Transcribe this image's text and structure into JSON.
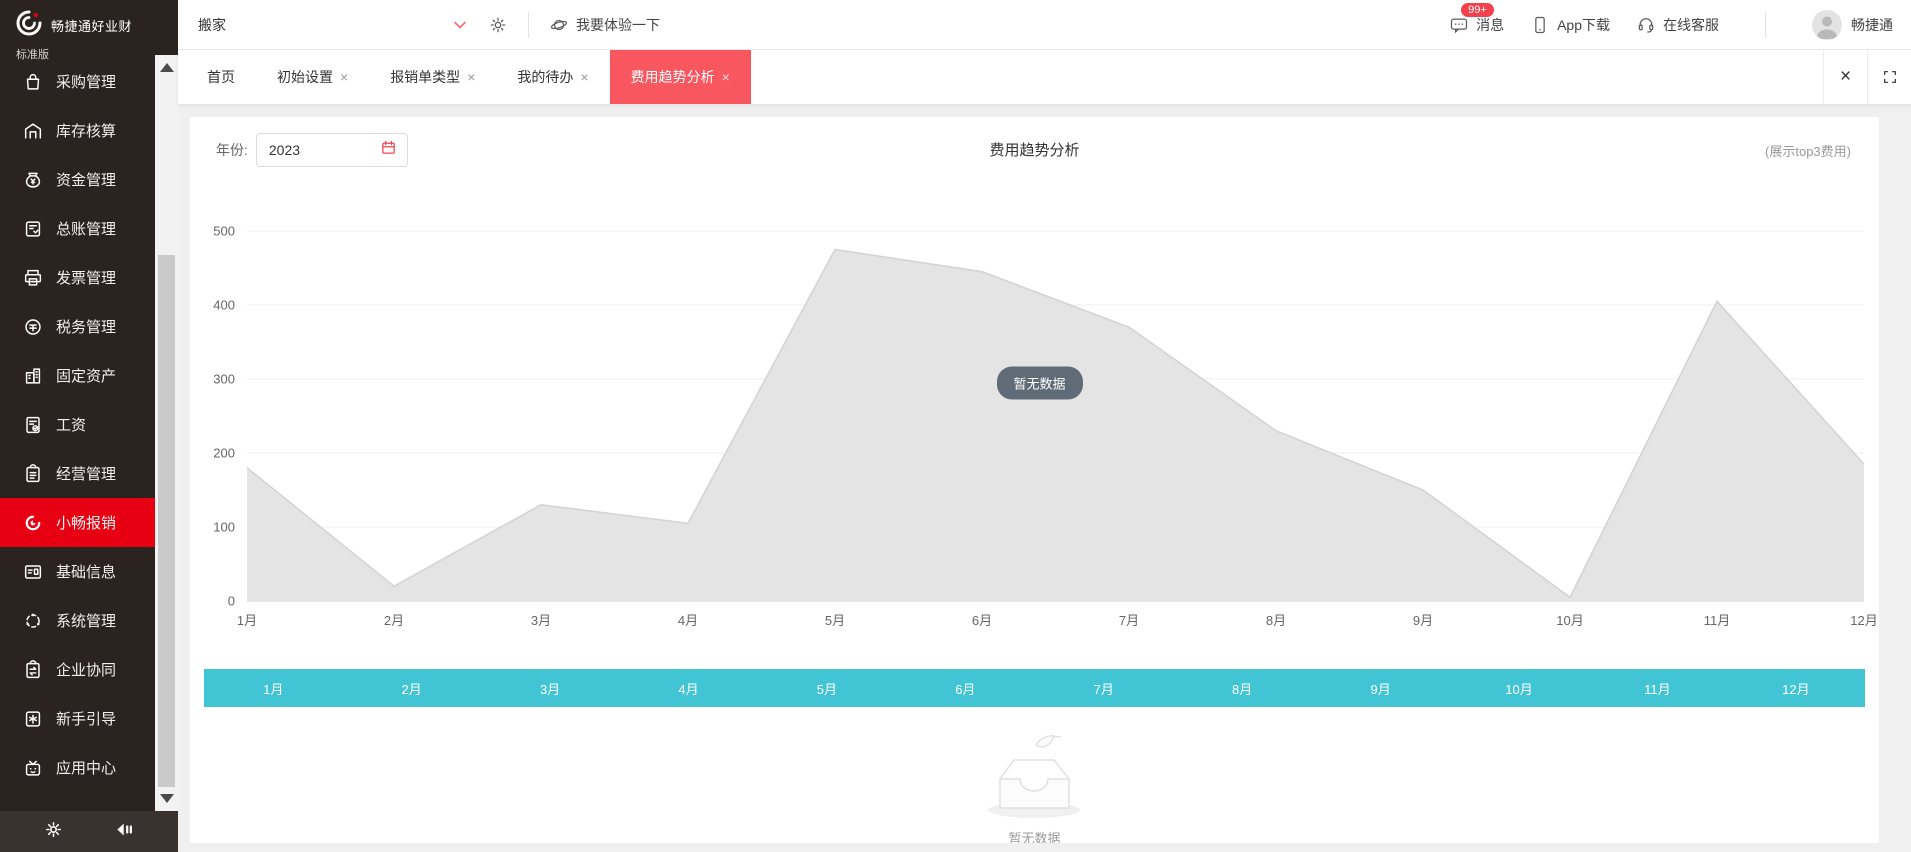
{
  "app": {
    "logo_title": "畅捷通好业财",
    "logo_subtitle": "标准版"
  },
  "sidebar": {
    "items": [
      {
        "name": "purchase",
        "icon": "bag",
        "label": "采购管理",
        "active": false
      },
      {
        "name": "inventory",
        "icon": "warehouse",
        "label": "库存核算",
        "active": false
      },
      {
        "name": "funds",
        "icon": "moneybag",
        "label": "资金管理",
        "active": false
      },
      {
        "name": "ledger",
        "icon": "ledger",
        "label": "总账管理",
        "active": false
      },
      {
        "name": "invoice",
        "icon": "invoice",
        "label": "发票管理",
        "active": false
      },
      {
        "name": "tax",
        "icon": "tax",
        "label": "税务管理",
        "active": false
      },
      {
        "name": "fixed-assets",
        "icon": "building",
        "label": "固定资产",
        "active": false
      },
      {
        "name": "salary",
        "icon": "salary",
        "label": "工资",
        "active": false
      },
      {
        "name": "operation",
        "icon": "clipboard",
        "label": "经营管理",
        "active": false
      },
      {
        "name": "reimburse",
        "icon": "reimburse",
        "label": "小畅报销",
        "active": true
      },
      {
        "name": "basic-info",
        "icon": "idcard",
        "label": "基础信息",
        "active": false
      },
      {
        "name": "system",
        "icon": "system",
        "label": "系统管理",
        "active": false
      },
      {
        "name": "collaboration",
        "icon": "collab",
        "label": "企业协同",
        "active": false
      },
      {
        "name": "novice-guide",
        "icon": "guide",
        "label": "新手引导",
        "active": false
      },
      {
        "name": "app-center",
        "icon": "appcenter",
        "label": "应用中心",
        "active": false
      }
    ]
  },
  "topbar": {
    "app_menu": "搬家",
    "experience": "我要体验一下",
    "messages": "消息",
    "messages_badge": "99+",
    "app_download": "App下载",
    "support": "在线客服",
    "user_name": "畅捷通"
  },
  "tabs": {
    "items": [
      {
        "name": "home",
        "label": "首页",
        "closable": false,
        "active": false
      },
      {
        "name": "init-settings",
        "label": "初始设置",
        "closable": true,
        "active": false
      },
      {
        "name": "expense-type",
        "label": "报销单类型",
        "closable": true,
        "active": false
      },
      {
        "name": "my-todo",
        "label": "我的待办",
        "closable": true,
        "active": false
      },
      {
        "name": "expense-trend",
        "label": "费用趋势分析",
        "closable": true,
        "active": true
      }
    ]
  },
  "filters": {
    "year_label": "年份:",
    "year_value": "2023"
  },
  "chart": {
    "title": "费用趋势分析",
    "note": "(展示top3费用)",
    "no_data_badge": "暂无数据"
  },
  "chart_data": {
    "type": "area",
    "title": "费用趋势分析",
    "categories": [
      "1月",
      "2月",
      "3月",
      "4月",
      "5月",
      "6月",
      "7月",
      "8月",
      "9月",
      "10月",
      "11月",
      "12月"
    ],
    "values": [
      180,
      20,
      130,
      105,
      475,
      445,
      370,
      230,
      150,
      5,
      405,
      185
    ],
    "xlabel": "",
    "ylabel": "",
    "ylim": [
      0,
      500
    ],
    "yticks": [
      0,
      100,
      200,
      300,
      400,
      500
    ],
    "grid": true,
    "legend": false,
    "fill_color": "#e4e4e4",
    "line_color": "#d4d4d4"
  },
  "month_bar": [
    "1月",
    "2月",
    "3月",
    "4月",
    "5月",
    "6月",
    "7月",
    "8月",
    "9月",
    "10月",
    "11月",
    "12月"
  ],
  "empty_state": {
    "text": "暂无数据"
  },
  "colors": {
    "sidebar_active": "#e60012",
    "tab_active": "#f8575f",
    "month_bar": "#41c5d5",
    "badge": "#f5404d",
    "nodata_pill": "#5f6b77"
  }
}
